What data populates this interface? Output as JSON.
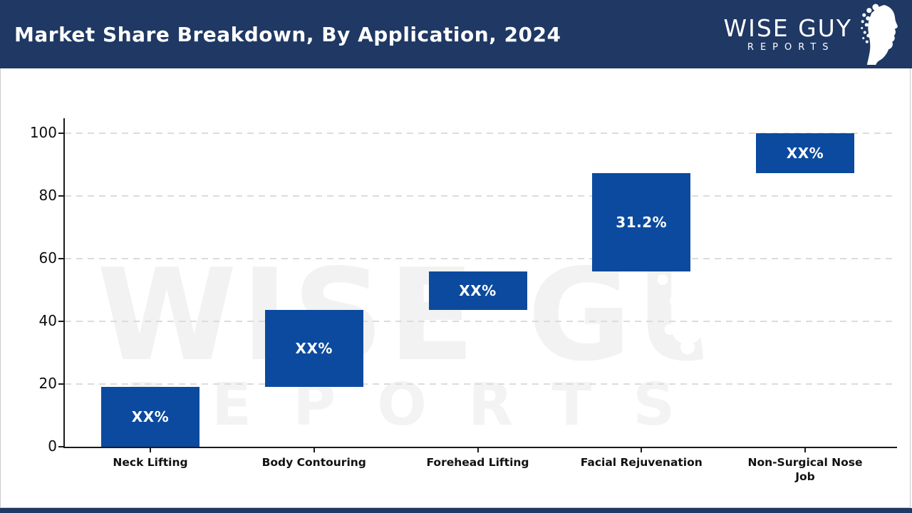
{
  "header": {
    "title": "Market Share Breakdown, By Application, 2024",
    "logo": {
      "line1": "WISE GUY",
      "line2": "REPORTS"
    }
  },
  "watermark": {
    "line1": "WISE GUY",
    "line2": "REPORTS"
  },
  "colors": {
    "header_bg": "#1f3864",
    "bar_fill": "#0b4a9e",
    "bar_label": "#ffffff",
    "gridline": "#dcdcdc",
    "watermark": "#f2f2f2"
  },
  "chart_data": {
    "type": "bar",
    "subtype": "waterfall",
    "title": "Market Share Breakdown, By Application, 2024",
    "xlabel": "",
    "ylabel": "",
    "ylim": [
      0,
      100
    ],
    "yticks": [
      0,
      20,
      40,
      60,
      80,
      100
    ],
    "grid": "horizontal-dashed",
    "legend": "none",
    "categories": [
      "Neck Lifting",
      "Body Contouring",
      "Forehead Lifting",
      "Facial Rejuvenation",
      "Non-Surgical Nose Job"
    ],
    "segments": [
      {
        "category": "Neck Lifting",
        "start": 0,
        "end": 19,
        "value_label": "XX%"
      },
      {
        "category": "Body Contouring",
        "start": 19,
        "end": 43.7,
        "value_label": "XX%"
      },
      {
        "category": "Forehead Lifting",
        "start": 43.7,
        "end": 56,
        "value_label": "XX%"
      },
      {
        "category": "Facial Rejuvenation",
        "start": 56,
        "end": 87.2,
        "value_label": "31.2%",
        "value": 31.2
      },
      {
        "category": "Non-Surgical Nose Job",
        "start": 87.2,
        "end": 100,
        "value_label": "XX%"
      }
    ]
  }
}
